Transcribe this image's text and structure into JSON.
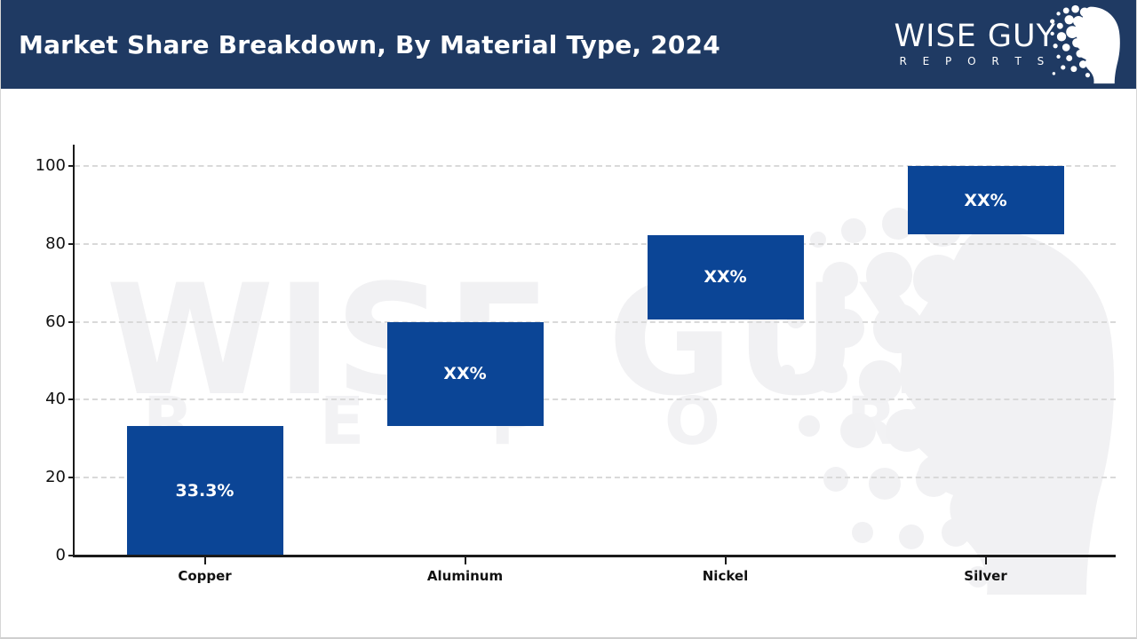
{
  "header": {
    "title": "Market Share Breakdown, By Material Type, 2024"
  },
  "logo": {
    "line1": "WISE GUY",
    "line2": "R E P O R T S"
  },
  "watermark": {
    "line1": "WISE GUY",
    "line2": "R E P O R T S"
  },
  "colors": {
    "header_bg": "#1f3a63",
    "bar": "#0b4596",
    "grid": "#d9d9d9",
    "axis": "#1a1a1a",
    "value_label": "#ffffff",
    "watermark": "#f1f1f3"
  },
  "chart_data": {
    "type": "bar",
    "subtype": "waterfall",
    "title": "Market Share Breakdown, By Material Type, 2024",
    "categories": [
      "Copper",
      "Aluminum",
      "Nickel",
      "Silver"
    ],
    "segments": [
      {
        "category": "Copper",
        "start": 0,
        "end": 33.3,
        "label": "33.3%"
      },
      {
        "category": "Aluminum",
        "start": 33.3,
        "end": 60,
        "label": "XX%"
      },
      {
        "category": "Nickel",
        "start": 60.7,
        "end": 82.3,
        "label": "XX%"
      },
      {
        "category": "Silver",
        "start": 82.4,
        "end": 100,
        "label": "XX%"
      }
    ],
    "xlabel": "",
    "ylabel": "",
    "ylim": [
      0,
      105
    ],
    "yticks": [
      0,
      20,
      40,
      60,
      80,
      100
    ],
    "grid": "horizontal-dashed",
    "legend": "none",
    "bar_color": "#0b4596",
    "value_label_color": "#ffffff"
  }
}
